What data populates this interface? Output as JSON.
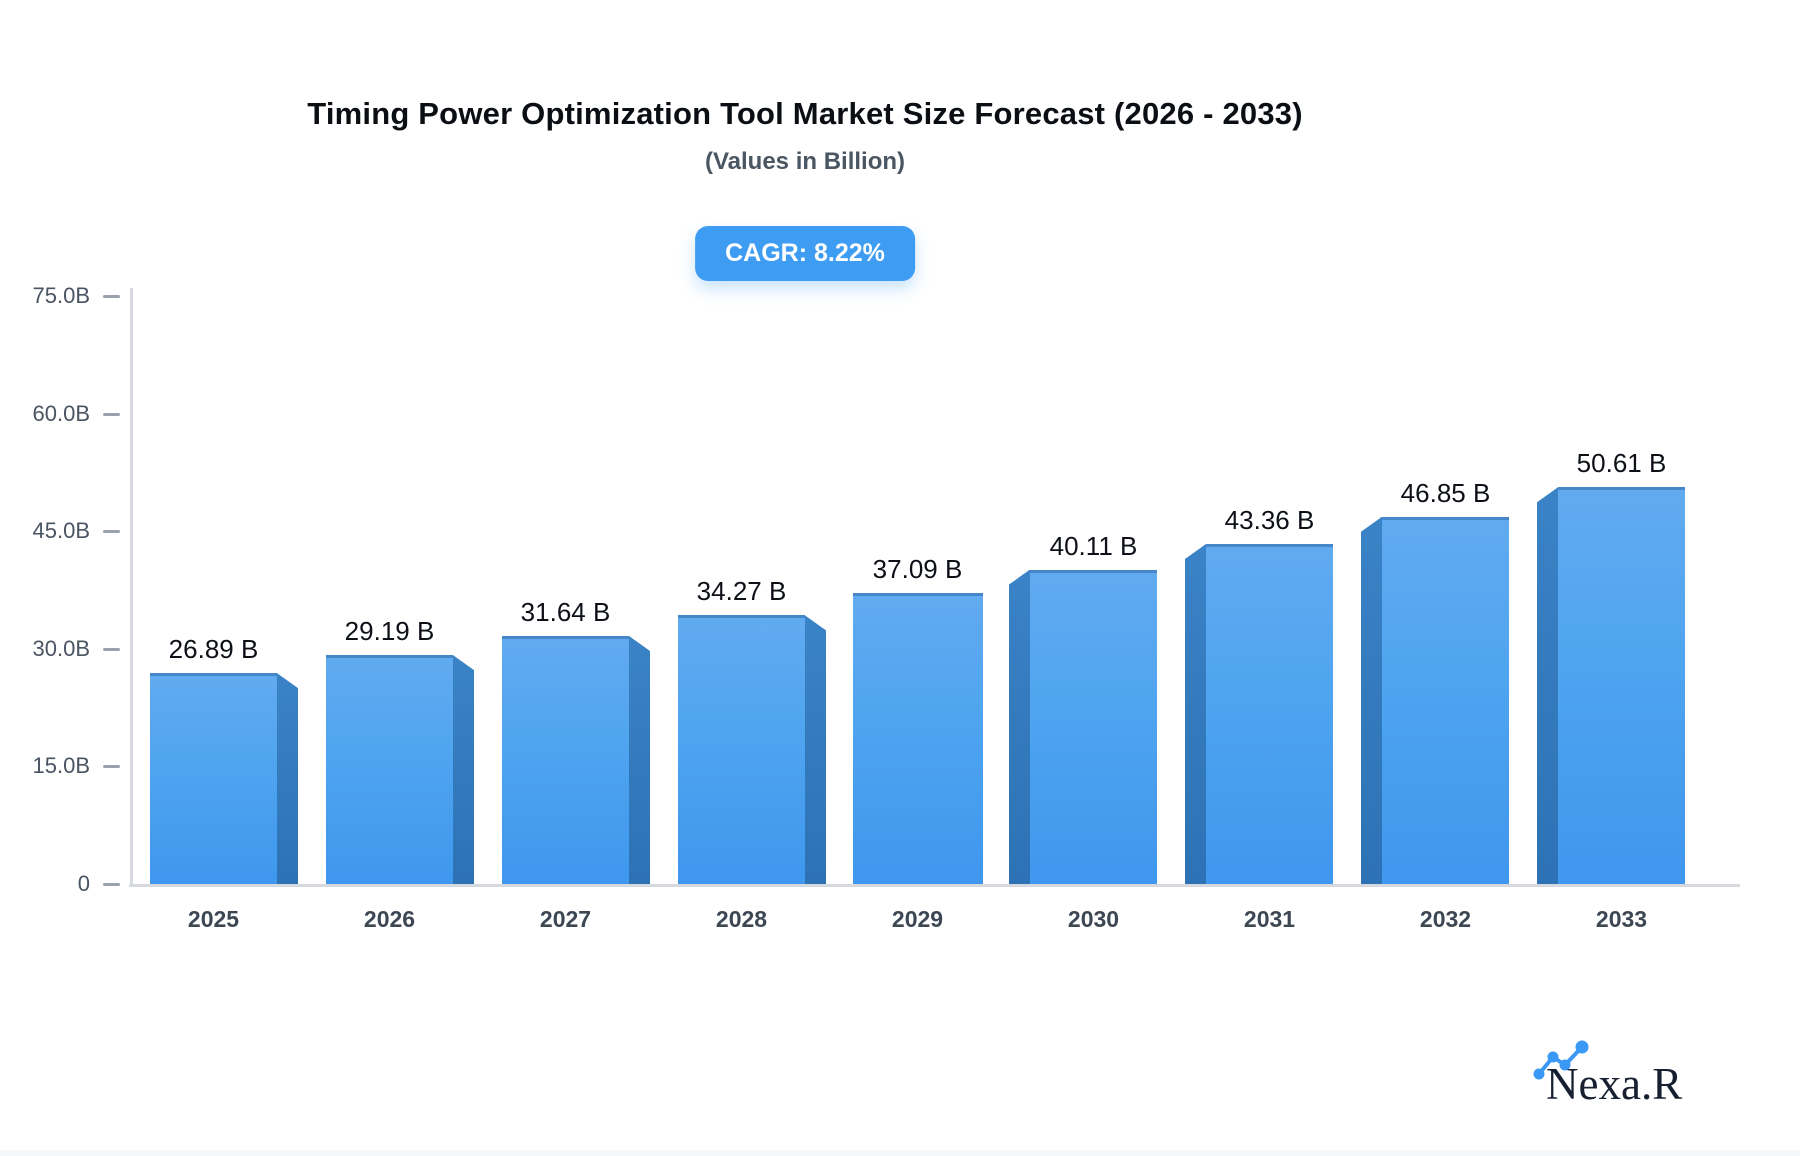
{
  "header": {
    "title": "Timing Power Optimization Tool Market Size Forecast (2026 - 2033)",
    "subtitle": "(Values in Billion)",
    "cagr_badge": "CAGR: 8.22%"
  },
  "chart_data": {
    "type": "bar",
    "title": "Timing Power Optimization Tool Market Size Forecast (2026 - 2033)",
    "subtitle": "(Values in Billion)",
    "categories": [
      "2025",
      "2026",
      "2027",
      "2028",
      "2029",
      "2030",
      "2031",
      "2032",
      "2033"
    ],
    "values": [
      26.89,
      29.19,
      31.64,
      34.27,
      37.09,
      40.11,
      43.36,
      46.85,
      50.61
    ],
    "value_labels": [
      "26.89 B",
      "29.19 B",
      "31.64 B",
      "34.27 B",
      "37.09 B",
      "40.11 B",
      "43.36 B",
      "46.85 B",
      "50.61 B"
    ],
    "xlabel": "",
    "ylabel": "",
    "ylim": [
      0,
      75
    ],
    "yticks": [
      {
        "value": 75,
        "label": "75.0B"
      },
      {
        "value": 60,
        "label": "60.0B"
      },
      {
        "value": 45,
        "label": "45.0B"
      },
      {
        "value": 30,
        "label": "30.0B"
      },
      {
        "value": 15,
        "label": "15.0B"
      },
      {
        "value": 0,
        "label": "0"
      }
    ],
    "grid": false,
    "legend": false,
    "annotations": [
      "CAGR: 8.22%"
    ]
  },
  "branding": {
    "logo_text": "Nexa.R"
  },
  "colors": {
    "badge_blue": "#3e9df2",
    "bar_face_top": "#61aaf0",
    "bar_face_bottom": "#3f97ee",
    "bar_side": "#2e76b8",
    "axis_gray": "#d6dade",
    "tick_text": "#4a5462",
    "year_text": "#3d4754",
    "value_text": "#0d1117",
    "title_text": "#0b0f14",
    "subtitle_text": "#4b5663",
    "logo_icon_blue": "#3b99f6",
    "logo_text_dark": "#172030"
  }
}
